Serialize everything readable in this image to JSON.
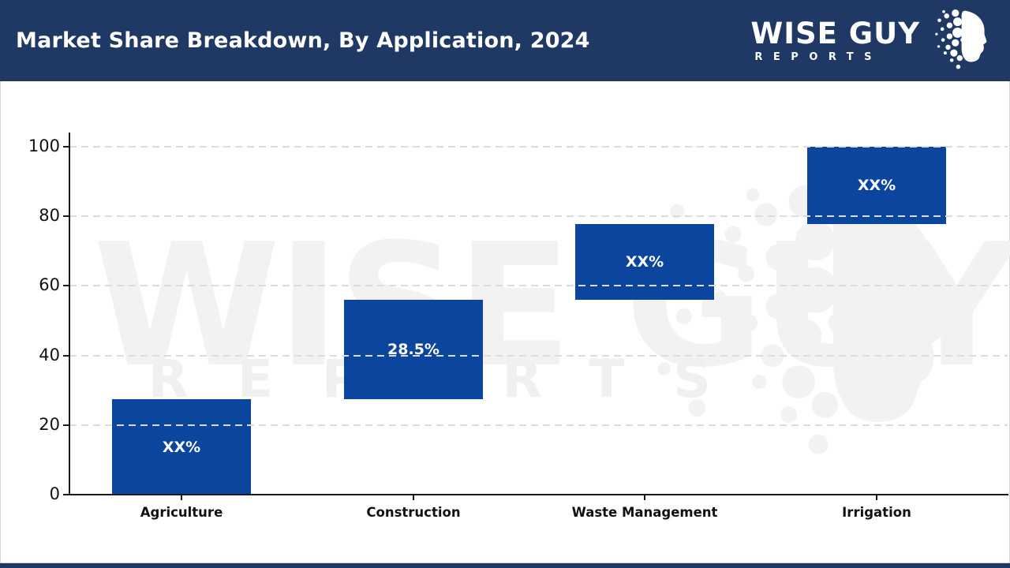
{
  "header": {
    "title": "Market Share Breakdown, By Application, 2024",
    "logo": {
      "line1": "WISE GUY",
      "line2": "REPORTS"
    }
  },
  "watermark": {
    "line1": "WISE GUY",
    "line2": "REPORTS"
  },
  "chart_data": {
    "type": "bar",
    "subtype": "waterfall",
    "title": "Market Share Breakdown, By Application, 2024",
    "categories": [
      "Agriculture",
      "Construction",
      "Waste Management",
      "Irrigation"
    ],
    "bars": [
      {
        "category": "Agriculture",
        "start": 0,
        "end": 27.4,
        "label": "XX%"
      },
      {
        "category": "Construction",
        "start": 27.4,
        "end": 55.9,
        "label": "28.5%"
      },
      {
        "category": "Waste Management",
        "start": 55.9,
        "end": 77.8,
        "label": "XX%"
      },
      {
        "category": "Irrigation",
        "start": 77.8,
        "end": 100,
        "label": "XX%"
      }
    ],
    "ylim": [
      0,
      100
    ],
    "yticks": [
      0,
      20,
      40,
      60,
      80,
      100
    ],
    "grid": "horizontal-dashed",
    "legend": "none",
    "colors": {
      "bar": "#0b459e",
      "bar_label": "#ffffff",
      "grid": "#dcdcdc",
      "axis": "#1a1a1a",
      "header_bg": "#1f3864",
      "watermark": "#f2f2f2"
    }
  }
}
